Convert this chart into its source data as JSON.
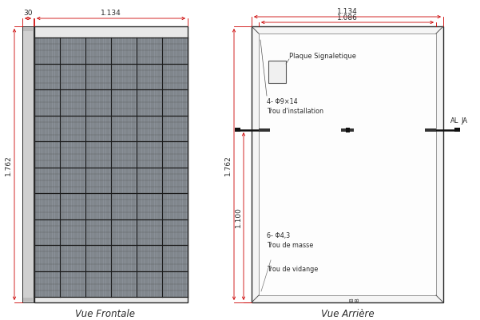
{
  "bg_color": "#ffffff",
  "line_color": "#2a2a2a",
  "dim_color": "#cc0000",
  "grid_dark": "#1a1a1a",
  "grid_light": "#4a4a4a",
  "grid_bg": "#8a9098",
  "frame_fill": "#d8d8d8",
  "front_label": "Vue Frontale",
  "back_label": "Vue Arrière",
  "dim_width": "1.134",
  "dim_height": "1.762",
  "dim_thickness": "30",
  "dim_inner_width": "1.086",
  "dim_cable_height": "1.100",
  "label_plaque": "Plaque Signaletique",
  "label_installation": "4- Φ9×14\nTrou d'installation",
  "label_masse": "6- Φ4,3\nTrou de masse",
  "label_vidange": "Trou de vidange",
  "label_al": "AL",
  "label_ja": "JA"
}
